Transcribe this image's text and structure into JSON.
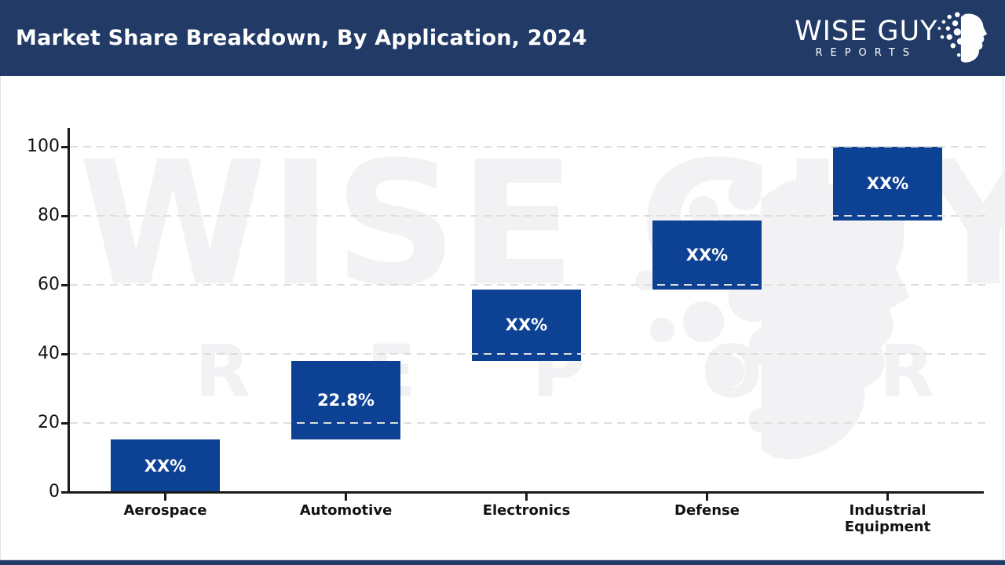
{
  "header": {
    "title": "Market Share Breakdown, By Application, 2024",
    "logo": {
      "line1": "WISE GUY",
      "line2": "REPORTS"
    }
  },
  "watermark": {
    "line1": "WISE GUY",
    "line2": "REPORTS"
  },
  "colors": {
    "header_bg": "#213a66",
    "footer_bg": "#213a66",
    "bar_fill": "#0c4193",
    "bar_label_text": "#ffffff",
    "gridline": "#dedede",
    "axis": "#1a1a1a",
    "watermark": "#f2f2f4"
  },
  "chart_data": {
    "type": "bar",
    "subtype": "waterfall",
    "title": "Market Share Breakdown, By Application, 2024",
    "xlabel": "",
    "ylabel": "",
    "ylim": [
      0,
      100
    ],
    "yticks": [
      "0",
      "20",
      "40",
      "60",
      "80",
      "100"
    ],
    "grid": "horizontal dashed, drawn over bars",
    "legend": "none",
    "categories": [
      "Aerospace",
      "Automotive",
      "Electronics",
      "Defense",
      "Industrial Equipment"
    ],
    "segments": [
      {
        "category": "Aerospace",
        "start": 0,
        "end": 15.2,
        "label": "XX%"
      },
      {
        "category": "Automotive",
        "start": 15.2,
        "end": 38.0,
        "label": "22.8%"
      },
      {
        "category": "Electronics",
        "start": 38.0,
        "end": 58.6,
        "label": "XX%"
      },
      {
        "category": "Defense",
        "start": 58.6,
        "end": 78.6,
        "label": "XX%"
      },
      {
        "category": "Industrial Equipment",
        "start": 78.6,
        "end": 100,
        "label": "XX%"
      }
    ]
  }
}
